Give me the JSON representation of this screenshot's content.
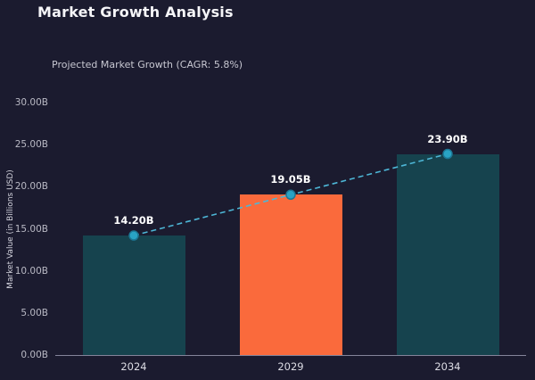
{
  "title": "Market Growth Analysis",
  "subtitle": "Projected Market Growth (CAGR: 5.8%)",
  "colors": {
    "background": "#1b1b2f",
    "bar_teal": "#16434e",
    "bar_orange": "#fa6a3c",
    "trend_line": "#4db6d6",
    "dot_fill": "#29a3c4",
    "dot_stroke": "#1c7795",
    "axis": "#84849a",
    "title_text": "#f5f5f8",
    "label_text": "#ffffff"
  },
  "chart_data": {
    "type": "bar",
    "title": "Market Growth Analysis",
    "subtitle": "Projected Market Growth (CAGR: 5.8%)",
    "categories": [
      "2024",
      "2029",
      "2034"
    ],
    "values": [
      14.2,
      19.05,
      23.9
    ],
    "value_labels": [
      "14.20B",
      "19.05B",
      "23.90B"
    ],
    "bar_colors": [
      "#16434e",
      "#fa6a3c",
      "#16434e"
    ],
    "xlabel": "",
    "ylabel": "Market Value (in Billions USD)",
    "ylim": [
      0,
      30
    ],
    "yticks": [
      "0.00B",
      "5.00B",
      "10.00B",
      "15.00B",
      "20.00B",
      "25.00B",
      "30.00B"
    ],
    "grid": false,
    "legend": false,
    "trend_overlay": {
      "style": "dashed",
      "color": "#4db6d6",
      "marker": "circle",
      "marker_color": "#29a3c4"
    },
    "cagr": "5.8%"
  }
}
